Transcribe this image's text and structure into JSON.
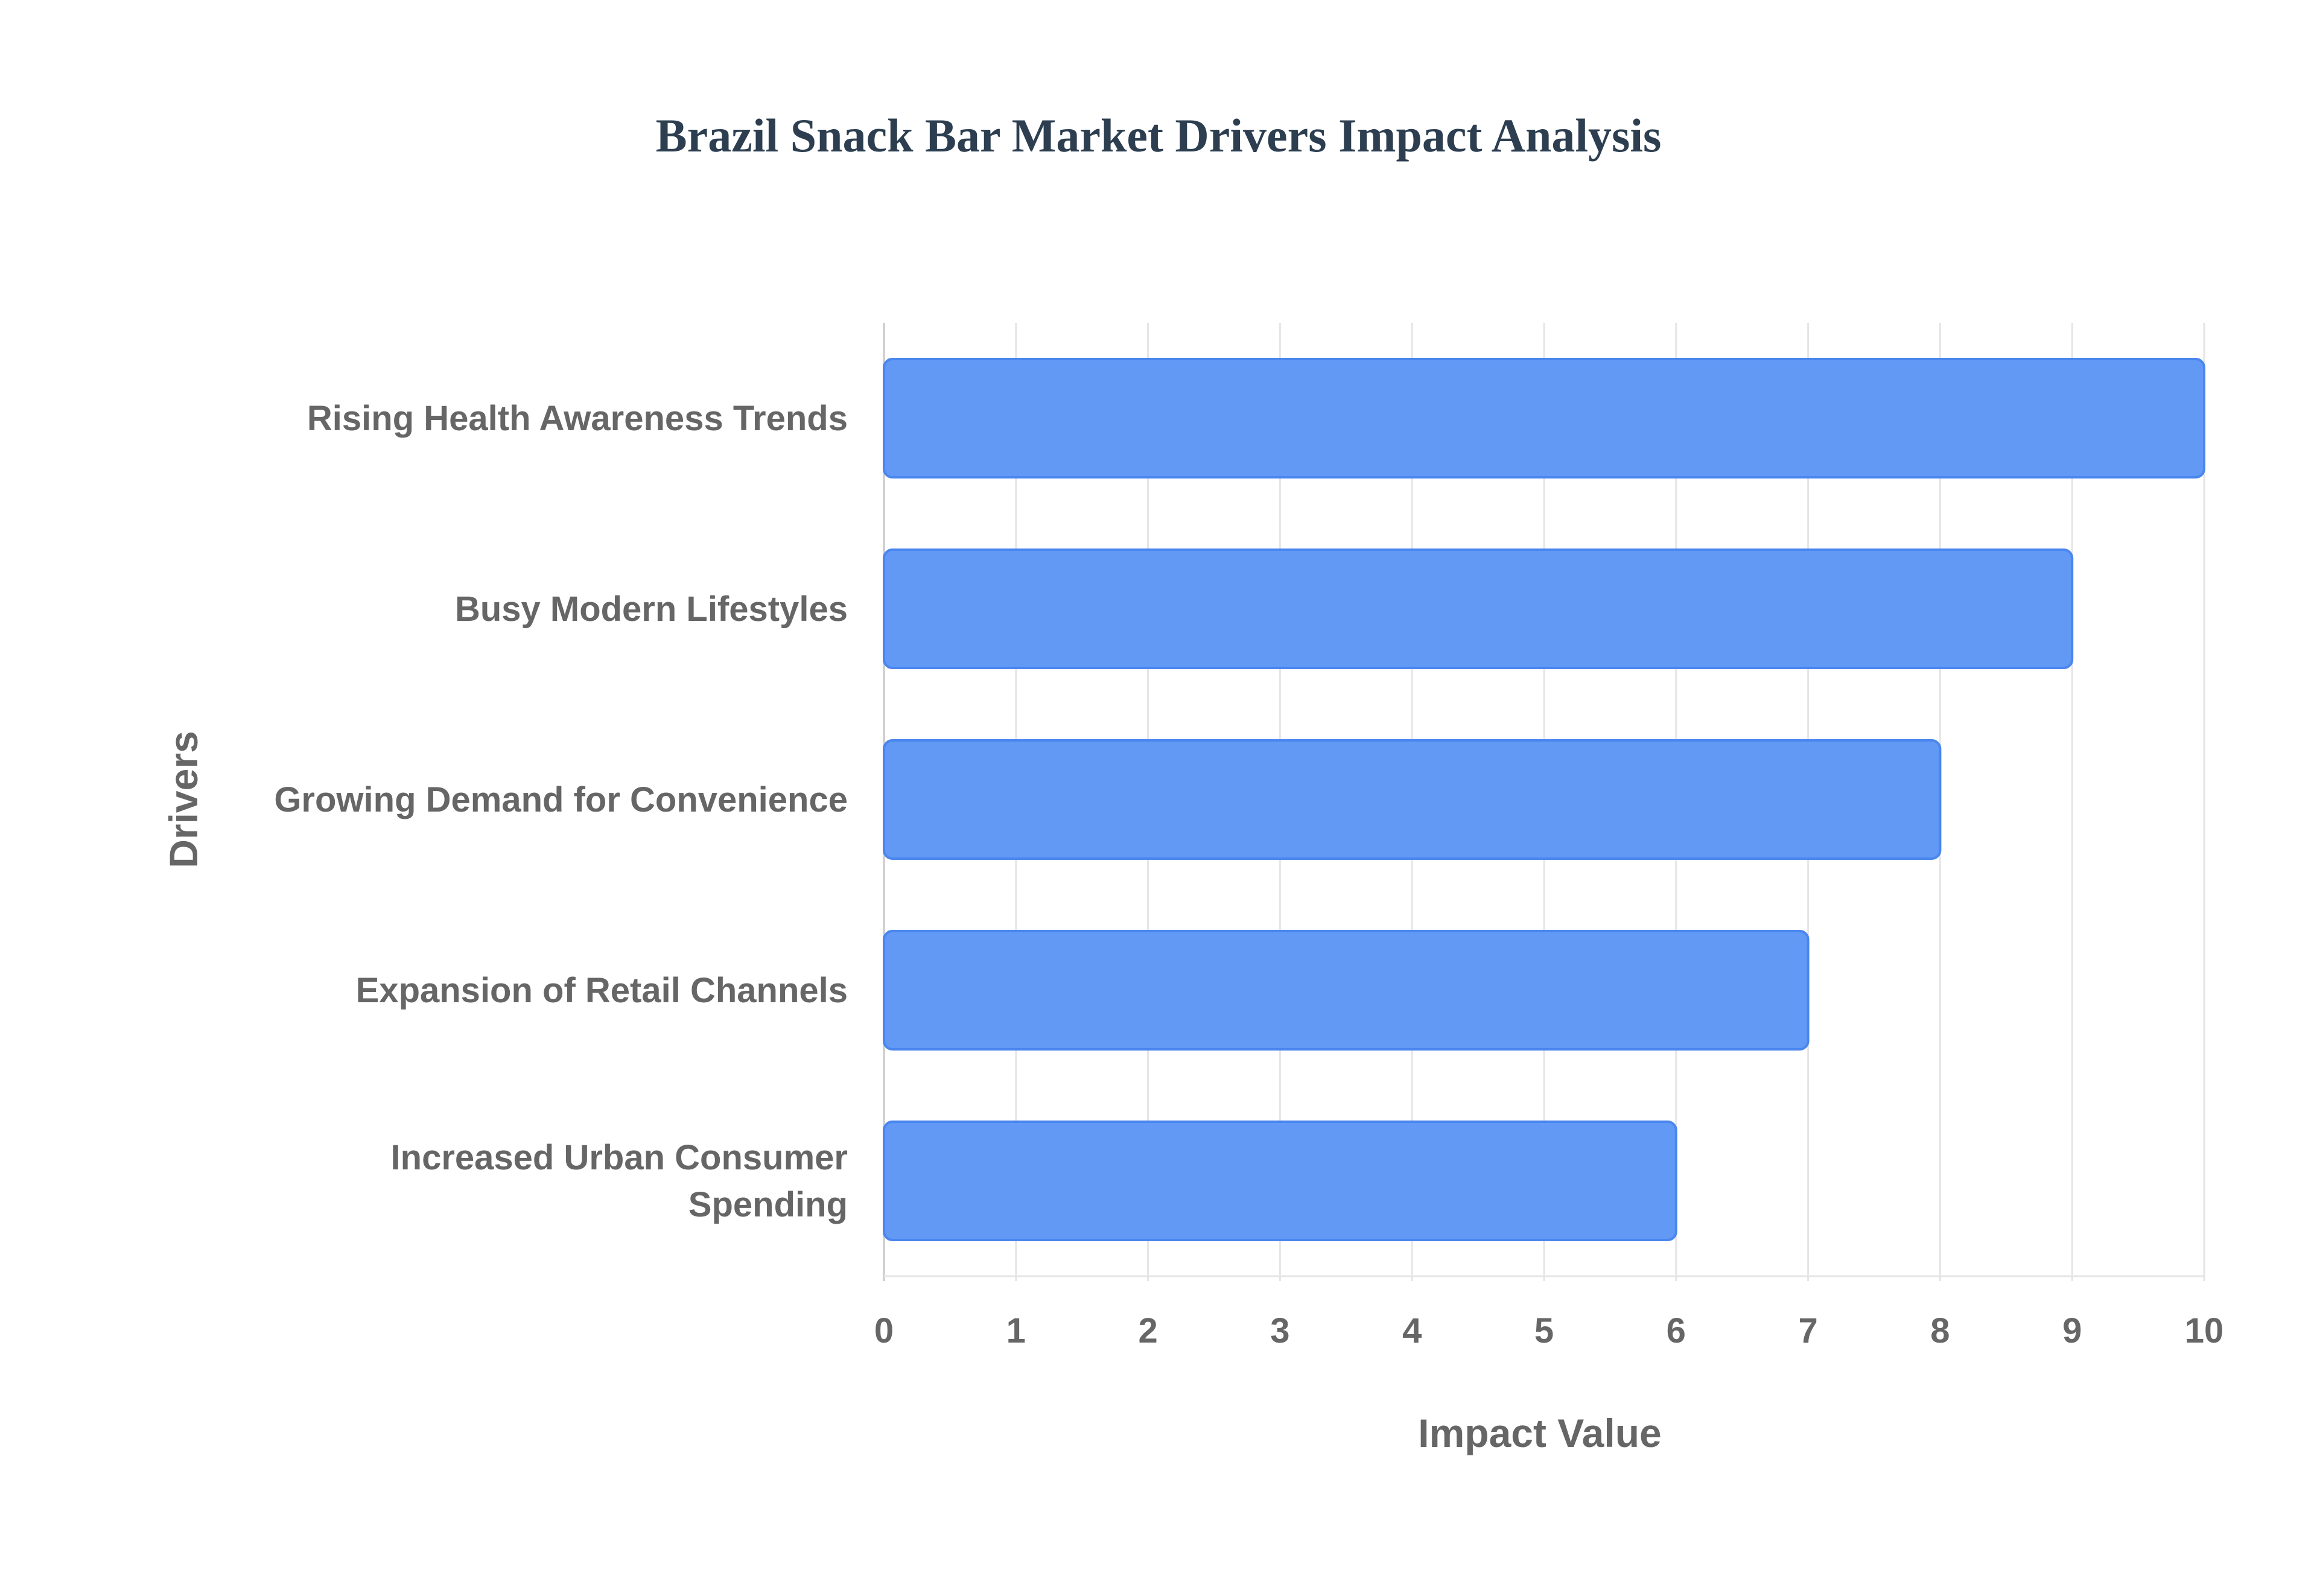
{
  "chart_data": {
    "type": "bar",
    "orientation": "horizontal",
    "title": "Brazil Snack Bar Market Drivers Impact Analysis",
    "xlabel": "Impact Value",
    "ylabel": "Drivers",
    "categories": [
      [
        "Rising Health Awareness Trends"
      ],
      [
        "Busy Modern Lifestyles"
      ],
      [
        "Growing Demand for Convenience"
      ],
      [
        "Expansion of Retail Channels"
      ],
      [
        "Increased Urban Consumer",
        "Spending"
      ]
    ],
    "values": [
      10,
      9,
      8,
      7,
      6
    ],
    "xlim": [
      0,
      10
    ],
    "xticks": [
      "0",
      "1",
      "2",
      "3",
      "4",
      "5",
      "6",
      "7",
      "8",
      "9",
      "10"
    ],
    "grid": true,
    "legend": "none",
    "colors": {
      "bar_fill": "#6199f5",
      "bar_stroke": "#4a86ee",
      "title": "#2c3e50",
      "grid": "#e5e5e5",
      "axis": "#d0d0d0",
      "text": "#666666"
    }
  }
}
